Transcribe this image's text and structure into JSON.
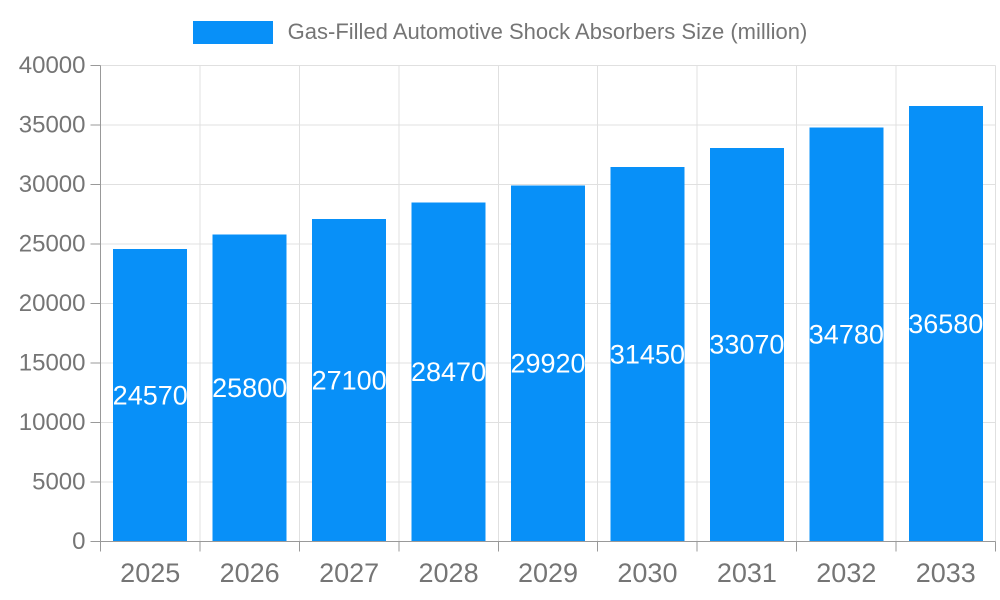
{
  "chart_data": {
    "type": "bar",
    "title": "Gas-Filled Automotive Shock Absorbers Size (million)",
    "categories": [
      "2025",
      "2026",
      "2027",
      "2028",
      "2029",
      "2030",
      "2031",
      "2032",
      "2033"
    ],
    "values": [
      24570,
      25800,
      27100,
      28470,
      29920,
      31450,
      33070,
      34780,
      36580
    ],
    "value_labels": [
      "24570",
      "25800",
      "27100",
      "28470",
      "29920",
      "31450",
      "33070",
      "34780",
      "36580"
    ],
    "xlabel": "",
    "ylabel": "",
    "ylim": [
      0,
      40000
    ],
    "ytick_step": 5000,
    "yticks": [
      0,
      5000,
      10000,
      15000,
      20000,
      25000,
      30000,
      35000,
      40000
    ],
    "ytick_labels": [
      "0",
      "5000",
      "10000",
      "15000",
      "20000",
      "25000",
      "30000",
      "35000",
      "40000"
    ],
    "grid": true,
    "legend_position": "top-center",
    "value_label_position": "inside-center",
    "colors": {
      "bar": "#0890f8",
      "axis_text": "#757575",
      "axis_line": "#999999",
      "gridline": "#e0e0e0",
      "value_label": "#ffffff",
      "background": "#ffffff"
    }
  }
}
